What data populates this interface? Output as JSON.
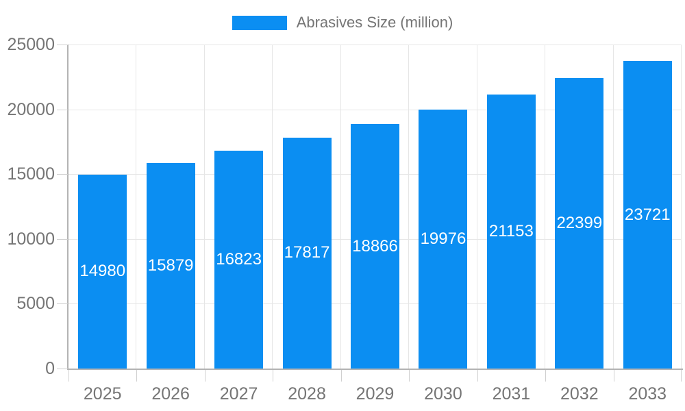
{
  "chart": {
    "colors": {
      "bar": "#0b8ef2",
      "value_label": "#ffffff",
      "axis_text": "#757575",
      "gridline": "#e6e6e6",
      "axis_line": "#b3b3b3",
      "tick": "#d0d0d0"
    }
  },
  "chart_data": {
    "type": "bar",
    "title": "",
    "series_name": "Abrasives Size (million)",
    "categories": [
      "2025",
      "2026",
      "2027",
      "2028",
      "2029",
      "2030",
      "2031",
      "2032",
      "2033"
    ],
    "values": [
      14980,
      15879,
      16823,
      17817,
      18866,
      19976,
      21153,
      22399,
      23721
    ],
    "xlabel": "",
    "ylabel": "",
    "ylim": [
      0,
      25000
    ],
    "yticks": [
      0,
      5000,
      10000,
      15000,
      20000,
      25000
    ],
    "grid": true,
    "legend_position": "top-center",
    "value_label_position": "inside-center"
  }
}
